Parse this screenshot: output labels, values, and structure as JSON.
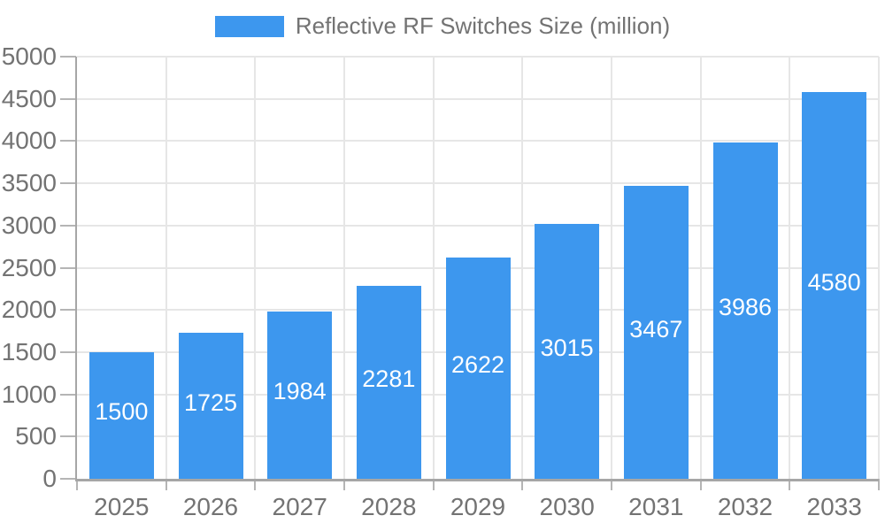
{
  "legend": {
    "label": "Reflective RF Switches Size (million)"
  },
  "colors": {
    "bar": "#3D97EE",
    "grid_line": "#E6E6E6",
    "axis_line": "#A6A6A6",
    "tick_line": "#B5B5B5",
    "axis_text": "#737373",
    "value_text": "#FFFFFF",
    "background": "#FFFFFF"
  },
  "chart_data": {
    "type": "bar",
    "title": "Reflective RF Switches Size (million)",
    "categories": [
      "2025",
      "2026",
      "2027",
      "2028",
      "2029",
      "2030",
      "2031",
      "2032",
      "2033"
    ],
    "values": [
      1500,
      1725,
      1984,
      2281,
      2622,
      3015,
      3467,
      3986,
      4580
    ],
    "xlabel": "",
    "ylabel": "",
    "ylim": [
      0,
      5000
    ],
    "yticks": [
      0,
      500,
      1000,
      1500,
      2000,
      2500,
      3000,
      3500,
      4000,
      4500,
      5000
    ],
    "grid": "both",
    "legend_position": "top",
    "bar_value_labels": "inside-center"
  }
}
